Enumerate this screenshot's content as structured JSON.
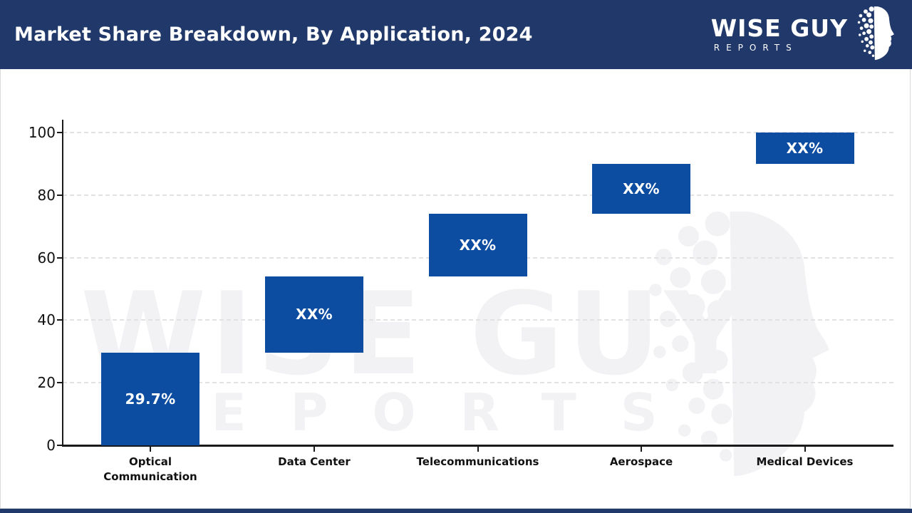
{
  "header": {
    "title": "Market Share Breakdown, By Application, 2024",
    "logo": {
      "line1": "WISE GUY",
      "line2": "REPORTS"
    },
    "bg_color": "#21386b"
  },
  "watermark": {
    "line1": "WISE GUY",
    "line2": "REPORTS"
  },
  "chart_data": {
    "type": "bar",
    "subtype": "floating-waterfall",
    "title": "Market Share Breakdown, By Application, 2024",
    "categories": [
      "Optical Communication",
      "Data Center",
      "Telecommunications",
      "Aerospace",
      "Medical Devices"
    ],
    "category_display": [
      "Optical\nCommunication",
      "Data Center",
      "Telecommunications",
      "Aerospace",
      "Medical Devices"
    ],
    "series": [
      {
        "name": "Market Share (%)",
        "segments": [
          {
            "from": 0,
            "to": 29.7
          },
          {
            "from": 29.7,
            "to": 54
          },
          {
            "from": 54,
            "to": 74
          },
          {
            "from": 74,
            "to": 90
          },
          {
            "from": 90,
            "to": 100
          }
        ]
      }
    ],
    "bar_labels": [
      "29.7%",
      "XX%",
      "XX%",
      "XX%",
      "XX%"
    ],
    "xlabel": "",
    "ylabel": "",
    "ylim": [
      0,
      100
    ],
    "yticks": [
      0,
      20,
      40,
      60,
      80,
      100
    ],
    "grid": "horizontal-dashed",
    "legend": "none",
    "bar_color": "#0c4da2",
    "bar_label_color": "#ffffff"
  }
}
